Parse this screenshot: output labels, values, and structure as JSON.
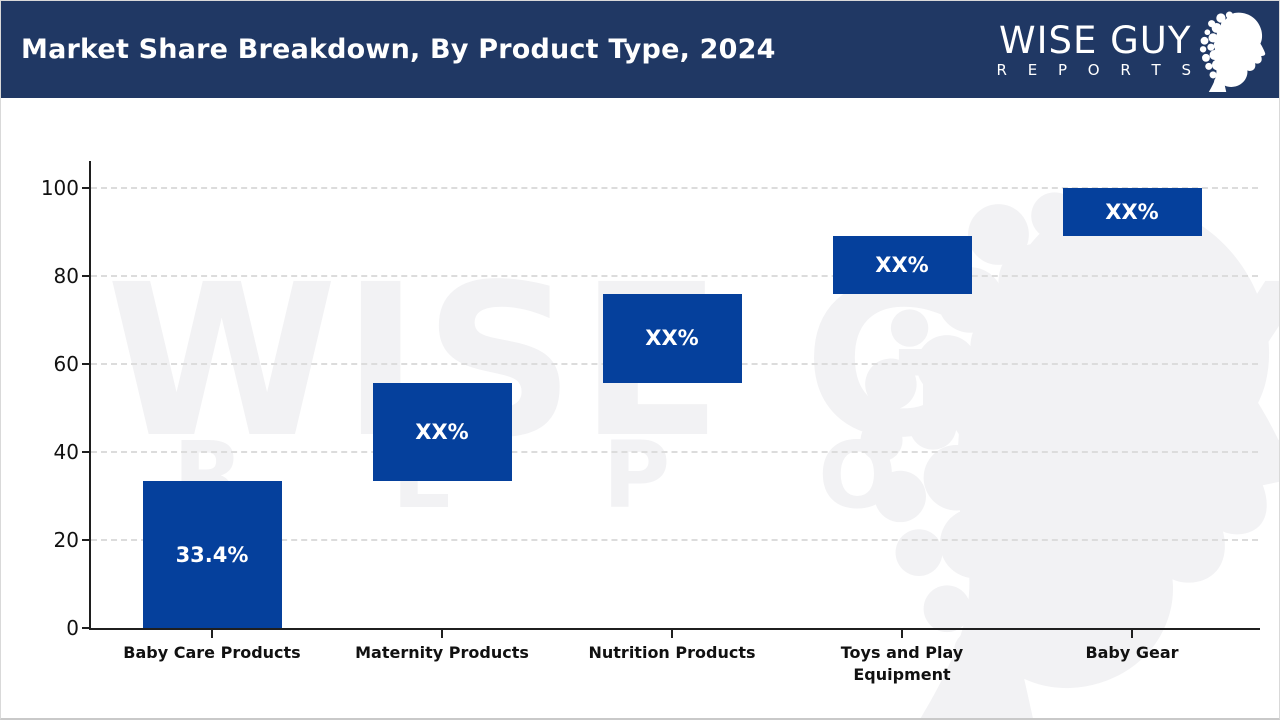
{
  "header": {
    "title": "Market Share Breakdown, By Product Type, 2024",
    "logo": {
      "wordmark": "WISE GUY",
      "subtitle": "R E P O R T S"
    }
  },
  "watermark": {
    "wordmark": "WISE GUY",
    "subtitle": "R E P O R T S"
  },
  "colors": {
    "header_bg": "#203864",
    "bar_fill": "#05409c",
    "bar_label_text": "#ffffff",
    "grid_line": "#dcdcdc",
    "axis_line": "#1f1f1f",
    "tick_text": "#111111",
    "watermark": "#f2f2f4",
    "background": "#ffffff"
  },
  "chart_data": {
    "type": "bar",
    "variant": "waterfall",
    "title": "Market Share Breakdown, By Product Type, 2024",
    "xlabel": "",
    "ylabel": "",
    "unit": "percent market share",
    "ylim": [
      0,
      107
    ],
    "y_ticks": [
      0,
      20,
      40,
      60,
      80,
      100
    ],
    "grid": "horizontal dashed",
    "legend": "none",
    "categories": [
      "Baby Care Products",
      "Maternity Products",
      "Nutrition Products",
      "Toys and Play Equipment",
      "Baby Gear"
    ],
    "segments": [
      {
        "category": "Baby Care Products",
        "start": 0,
        "end": 33.4,
        "label": "33.4%"
      },
      {
        "category": "Maternity Products",
        "start": 33.4,
        "end": 55.7,
        "label": "XX%"
      },
      {
        "category": "Nutrition Products",
        "start": 55.7,
        "end": 75.9,
        "label": "XX%"
      },
      {
        "category": "Toys and Play Equipment",
        "start": 75.9,
        "end": 89.1,
        "label": "XX%"
      },
      {
        "category": "Baby Gear",
        "start": 89.1,
        "end": 100,
        "label": "XX%"
      }
    ]
  }
}
